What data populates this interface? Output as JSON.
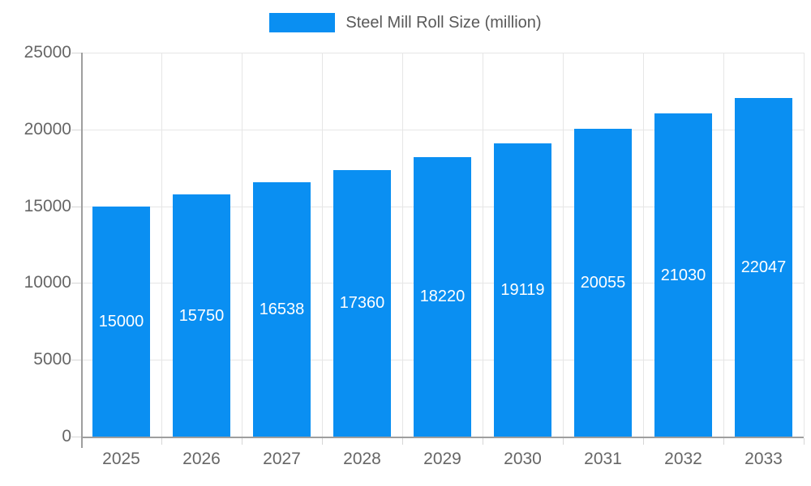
{
  "chart_data": {
    "type": "bar",
    "title": "",
    "legend_label": "Steel Mill Roll Size (million)",
    "legend_position": "top-center",
    "categories": [
      "2025",
      "2026",
      "2027",
      "2028",
      "2029",
      "2030",
      "2031",
      "2032",
      "2033"
    ],
    "values": [
      15000,
      15750,
      16538,
      17360,
      18220,
      19119,
      20055,
      21030,
      22047
    ],
    "bar_value_labels": [
      "15000",
      "15750",
      "16538",
      "17360",
      "18220",
      "19119",
      "20055",
      "21030",
      "22047"
    ],
    "xlabel": "",
    "ylabel": "",
    "y_ticks": [
      0,
      5000,
      10000,
      15000,
      20000,
      25000
    ],
    "y_tick_labels": [
      "0",
      "5000",
      "10000",
      "15000",
      "20000",
      "25000"
    ],
    "ylim": [
      0,
      25000
    ],
    "grid": true,
    "colors": {
      "bar": "#0a8ff2",
      "grid": "#e6e6e6",
      "axis": "#9e9e9e",
      "tick": "#d6d6d6",
      "axis_label": "#666666",
      "legend_text": "#595959",
      "bar_label": "#ffffff",
      "background": "#ffffff"
    }
  }
}
